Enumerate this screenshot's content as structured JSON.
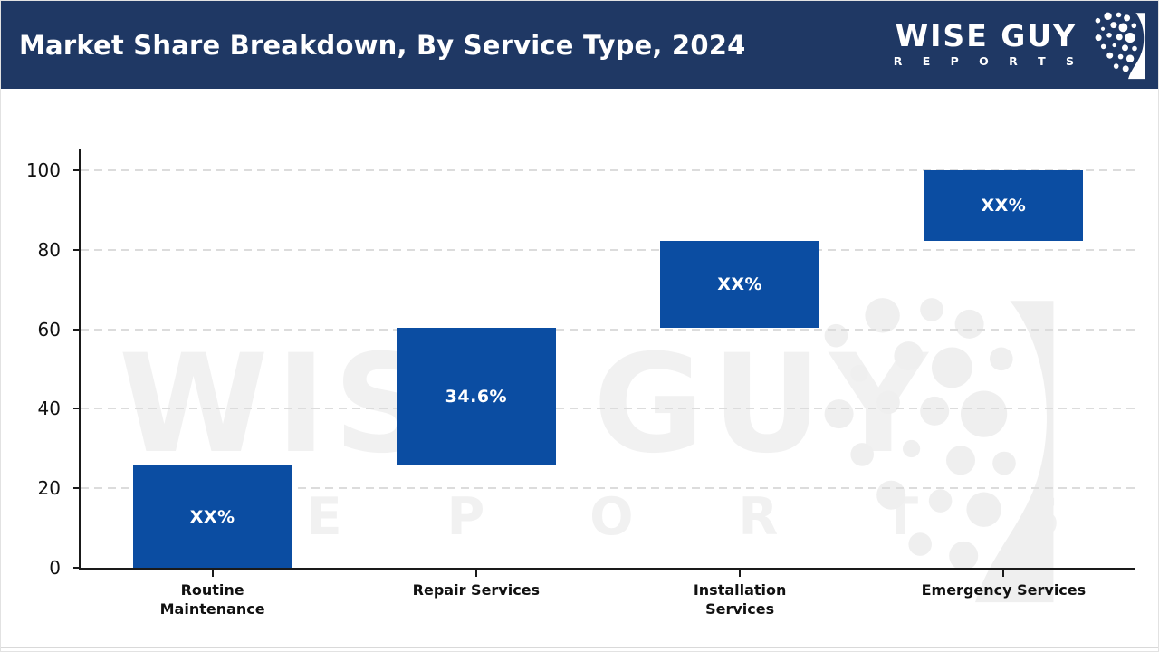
{
  "header": {
    "title": "Market Share Breakdown, By Service Type, 2024",
    "bg_color": "#1f3864",
    "logo": {
      "name": "WISE GUY",
      "tagline": "R E P O R T S"
    }
  },
  "watermark": {
    "name": "WISE GUY",
    "tagline": "R E P O R T S"
  },
  "chart_data": {
    "type": "bar",
    "subtype": "waterfall",
    "title": "Market Share Breakdown, By Service Type, 2024",
    "categories": [
      "Routine\nMaintenance",
      "Repair Services",
      "Installation\nServices",
      "Emergency Services"
    ],
    "values": [
      25.7,
      34.6,
      21.9,
      17.8
    ],
    "cumulative_starts": [
      0,
      25.7,
      60.3,
      82.2
    ],
    "cumulative_ends": [
      25.7,
      60.3,
      82.2,
      100
    ],
    "bar_labels": [
      "XX%",
      "34.6%",
      "XX%",
      "XX%"
    ],
    "xlabel": "",
    "ylabel": "",
    "ylim": [
      0,
      100
    ],
    "yticks": [
      0,
      20,
      40,
      60,
      80,
      100
    ],
    "grid": "horizontal-dashed",
    "legend": "none",
    "bar_color": "#0b4da2",
    "bar_label_color": "#ffffff",
    "axis_color": "#1a1a1a",
    "gridline_color": "#d9d9d9"
  }
}
